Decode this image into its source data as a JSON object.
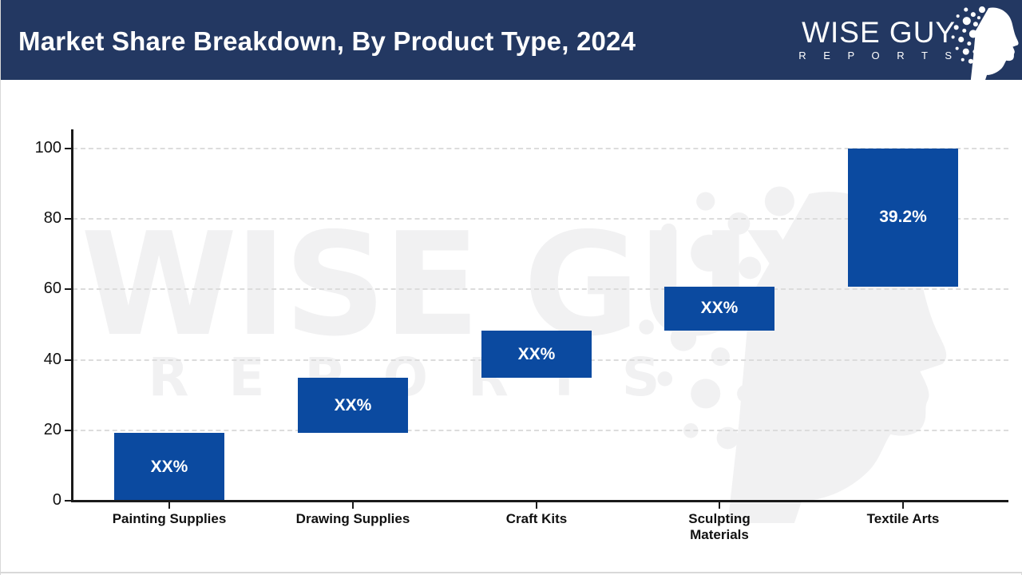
{
  "header": {
    "title": "Market Share Breakdown, By Product Type, 2024",
    "logo": {
      "line1": "WISE GUY",
      "line2": "R E P O R T S"
    }
  },
  "watermark": {
    "line1": "WISE GUY",
    "line2": "REPORTS"
  },
  "colors": {
    "header_bg": "#233862",
    "bar_blue": "#0b4aa0",
    "grid_gray": "#dcdcdc",
    "axis_black": "#1a1a1a",
    "watermark_gray": "#f1f1f2",
    "white": "#ffffff"
  },
  "chart_data": {
    "type": "bar",
    "subtype": "waterfall",
    "title": "Market Share Breakdown, By Product Type, 2024",
    "categories": [
      "Painting Supplies",
      "Drawing Supplies",
      "Craft Kits",
      "Sculpting\nMaterials",
      "Textile Arts"
    ],
    "segments": [
      {
        "category": "Painting Supplies",
        "start": 0,
        "end": 19.2,
        "label": "XX%"
      },
      {
        "category": "Drawing Supplies",
        "start": 19.2,
        "end": 34.9,
        "label": "XX%"
      },
      {
        "category": "Craft Kits",
        "start": 34.9,
        "end": 48.3,
        "label": "XX%"
      },
      {
        "category": "Sculpting Materials",
        "start": 48.3,
        "end": 60.8,
        "label": "XX%"
      },
      {
        "category": "Textile Arts",
        "start": 60.8,
        "end": 100.0,
        "label": "39.2%"
      }
    ],
    "ylim": [
      0,
      100
    ],
    "yticks": [
      0,
      20,
      40,
      60,
      80,
      100
    ],
    "xlabel": "",
    "ylabel": "",
    "grid": "horizontal-dashed",
    "legend": "none"
  }
}
